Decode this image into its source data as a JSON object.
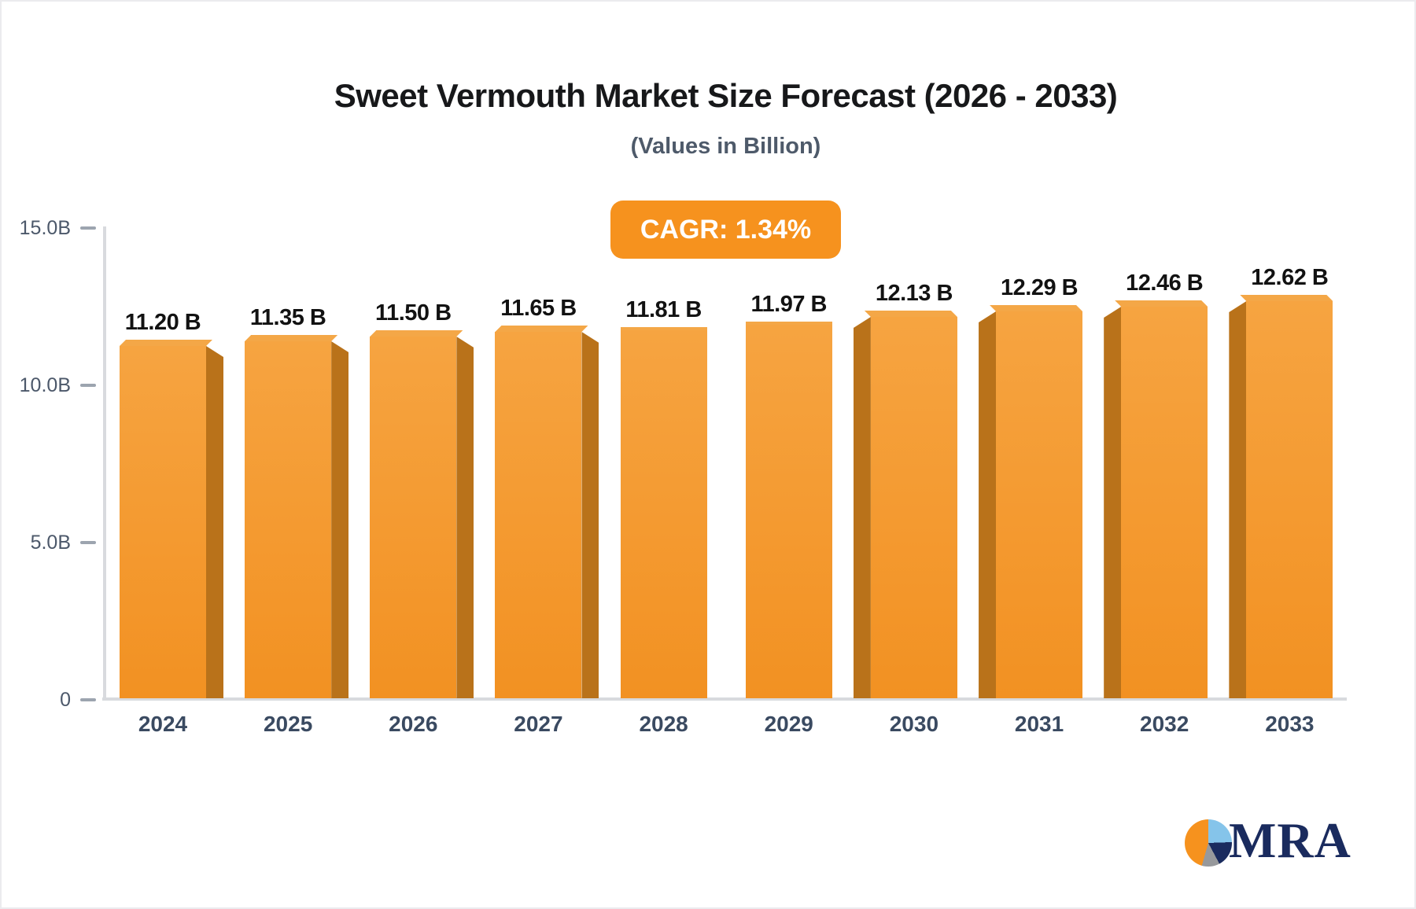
{
  "title": "Sweet Vermouth Market Size Forecast (2026 - 2033)",
  "subtitle": "(Values in Billion)",
  "badge": {
    "label": "CAGR: 1.34%"
  },
  "logo": {
    "text": "MRA"
  },
  "colors": {
    "accent_orange": "#f6921e",
    "bar_gradient_top": "#f6a441",
    "bar_gradient_bottom": "#f29122",
    "bar_side": "#b9721a",
    "bar_top_face": "#f4a747",
    "axis_line": "#d8dade",
    "tick_mark": "#9ca4af",
    "tick_label": "#4c586a",
    "year_label": "#3a4a61",
    "value_label": "#121212",
    "title_color": "#17181a",
    "subtitle_color": "#4e5a6a",
    "badge_text": "#ffffff",
    "logo_navy": "#1a2b5e",
    "logo_blue": "#85c4ea",
    "logo_gray": "#97999c"
  },
  "chart_data": {
    "type": "bar",
    "title": "Sweet Vermouth Market Size Forecast (2026 - 2033)",
    "subtitle": "(Values in Billion)",
    "annotation": "CAGR: 1.34%",
    "categories": [
      "2024",
      "2025",
      "2026",
      "2027",
      "2028",
      "2029",
      "2030",
      "2031",
      "2032",
      "2033"
    ],
    "values": [
      11.2,
      11.35,
      11.5,
      11.65,
      11.81,
      11.97,
      12.13,
      12.29,
      12.46,
      12.62
    ],
    "labels": [
      "11.20 B",
      "11.35 B",
      "11.50 B",
      "11.65 B",
      "11.81 B",
      "11.97 B",
      "12.13 B",
      "12.29 B",
      "12.46 B",
      "12.62 B"
    ],
    "xlabel": "",
    "ylabel": "",
    "ylim": [
      0,
      15
    ],
    "yticks": [
      {
        "label": "15.0B",
        "value": 15
      },
      {
        "label": "10.0B",
        "value": 10
      },
      {
        "label": "5.0B",
        "value": 5
      },
      {
        "label": "0",
        "value": 0
      }
    ],
    "grid": false,
    "legend": false,
    "bar_style": "3d-perspective"
  }
}
